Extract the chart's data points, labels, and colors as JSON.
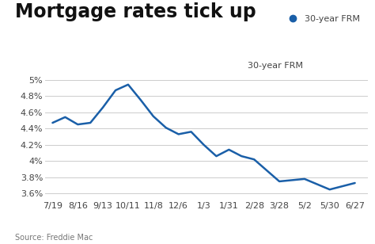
{
  "title": "Mortgage rates tick up",
  "source": "Source: Freddie Mac",
  "legend_label": "30-year FRM",
  "x_labels": [
    "7/19",
    "8/16",
    "9/13",
    "10/11",
    "11/8",
    "12/6",
    "1/3",
    "1/31",
    "2/28",
    "3/28",
    "5/2",
    "5/30",
    "6/27"
  ],
  "y_values": [
    4.47,
    4.54,
    4.45,
    4.47,
    4.66,
    4.87,
    4.94,
    4.75,
    4.55,
    4.41,
    4.33,
    4.36,
    4.2,
    4.06,
    4.14,
    4.06,
    4.02,
    3.75,
    3.78,
    3.65,
    3.73
  ],
  "x_indices": [
    0,
    0.5,
    1,
    1.5,
    2,
    2.5,
    3,
    3.5,
    4,
    4.5,
    5,
    5.5,
    6,
    6.5,
    7,
    7.5,
    8,
    9,
    10,
    11,
    12
  ],
  "ytick_vals": [
    3.6,
    3.8,
    4.0,
    4.2,
    4.4,
    4.6,
    4.8,
    5.0
  ],
  "ytick_labels": [
    "3.6%",
    "3.8%",
    "4%",
    "4.2%",
    "4.4%",
    "4.6%",
    "4.8%",
    "5%"
  ],
  "ylim": [
    3.52,
    5.08
  ],
  "xlim": [
    -0.3,
    12.5
  ],
  "line_color": "#1a5fa8",
  "marker_color": "#1a5fa8",
  "bg_color": "#ffffff",
  "grid_color": "#cccccc",
  "title_fontsize": 17,
  "label_fontsize": 8,
  "source_fontsize": 7
}
